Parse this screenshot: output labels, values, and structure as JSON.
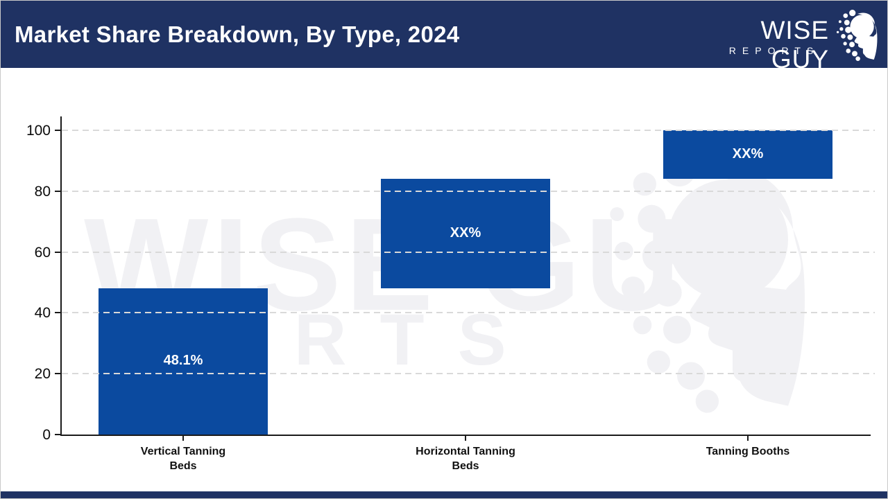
{
  "header": {
    "title": "Market Share Breakdown, By Type, 2024",
    "logo": {
      "name": "WISE GUY",
      "tagline": "REPORTS"
    }
  },
  "watermark": {
    "line1": "WISE GU",
    "line2": "PORTS"
  },
  "chart_data": {
    "type": "bar",
    "subtype": "waterfall",
    "title": "Market Share Breakdown, By Type, 2024",
    "categories": [
      "Vertical Tanning Beds",
      "Horizontal Tanning Beds",
      "Tanning Booths"
    ],
    "category_lines": [
      [
        "Vertical Tanning",
        "Beds"
      ],
      [
        "Horizontal Tanning",
        "Beds"
      ],
      [
        "Tanning Booths"
      ]
    ],
    "segments": [
      {
        "category": "Vertical Tanning Beds",
        "start": 0,
        "end": 48.1,
        "label": "48.1%"
      },
      {
        "category": "Horizontal Tanning Beds",
        "start": 48.1,
        "end": 84,
        "label": "XX%"
      },
      {
        "category": "Tanning Booths",
        "start": 84,
        "end": 100,
        "label": "XX%"
      }
    ],
    "ylim": [
      0,
      100
    ],
    "yticks": [
      0,
      20,
      40,
      60,
      80,
      100
    ],
    "grid": "dashed-horizontal",
    "legend": "none",
    "bar_color": "#0b4a9f",
    "bar_label_color": "#ffffff"
  },
  "colors": {
    "header_bg": "#1f3263",
    "footer_bg": "#1f3263",
    "bar": "#0b4a9f",
    "gridline": "#d9d9d9",
    "axis": "#1a1a1a",
    "watermark": "#f1f1f4"
  }
}
